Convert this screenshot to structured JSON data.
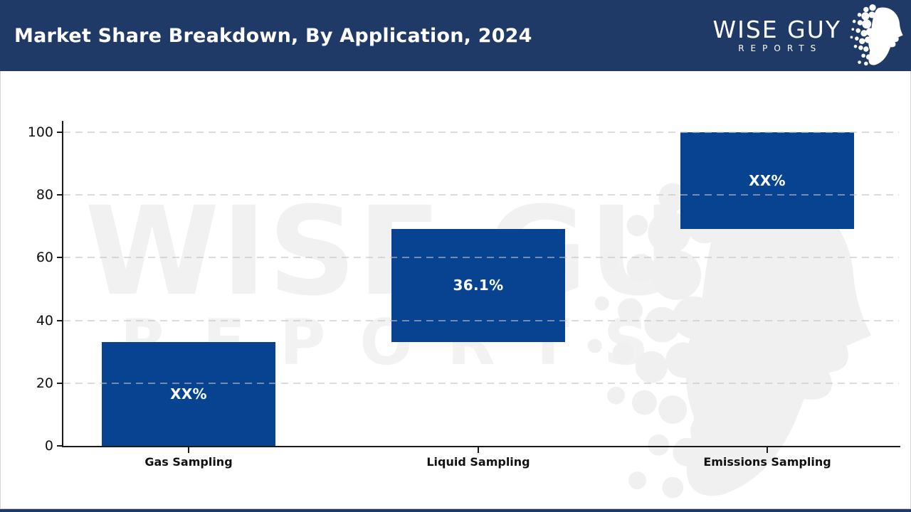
{
  "header": {
    "title": "Market Share Breakdown, By Application, 2024",
    "logo": {
      "line1": "WISE GUY",
      "line2": "REPORTS"
    }
  },
  "watermark": {
    "line1": "WISE GUY",
    "line2": "REPORTS"
  },
  "colors": {
    "header_navy": "#1f3a66",
    "bar_blue": "#084392",
    "axis": "#1a1a1a",
    "grid": "#c3c3c3",
    "watermark": "#f1f1f1",
    "bar_label": "#ffffff"
  },
  "chart_data": {
    "type": "bar",
    "subtype": "floating-stacked-percent",
    "title": "Market Share Breakdown, By Application, 2024",
    "categories": [
      "Gas Sampling",
      "Liquid Sampling",
      "Emissions Sampling"
    ],
    "bars": [
      {
        "category": "Gas Sampling",
        "start": 0,
        "end": 33.1,
        "value": 33.1,
        "value_label": "XX%"
      },
      {
        "category": "Liquid Sampling",
        "start": 33.1,
        "end": 69.2,
        "value": 36.1,
        "value_label": "36.1%"
      },
      {
        "category": "Emissions Sampling",
        "start": 69.2,
        "end": 100,
        "value": 30.8,
        "value_label": "XX%"
      }
    ],
    "ylim": [
      0,
      100
    ],
    "yticks": [
      0,
      20,
      40,
      60,
      80,
      100
    ],
    "grid": "dashed-horizontal",
    "legend": "none",
    "bar_color": "#084392",
    "label_color": "#ffffff"
  }
}
